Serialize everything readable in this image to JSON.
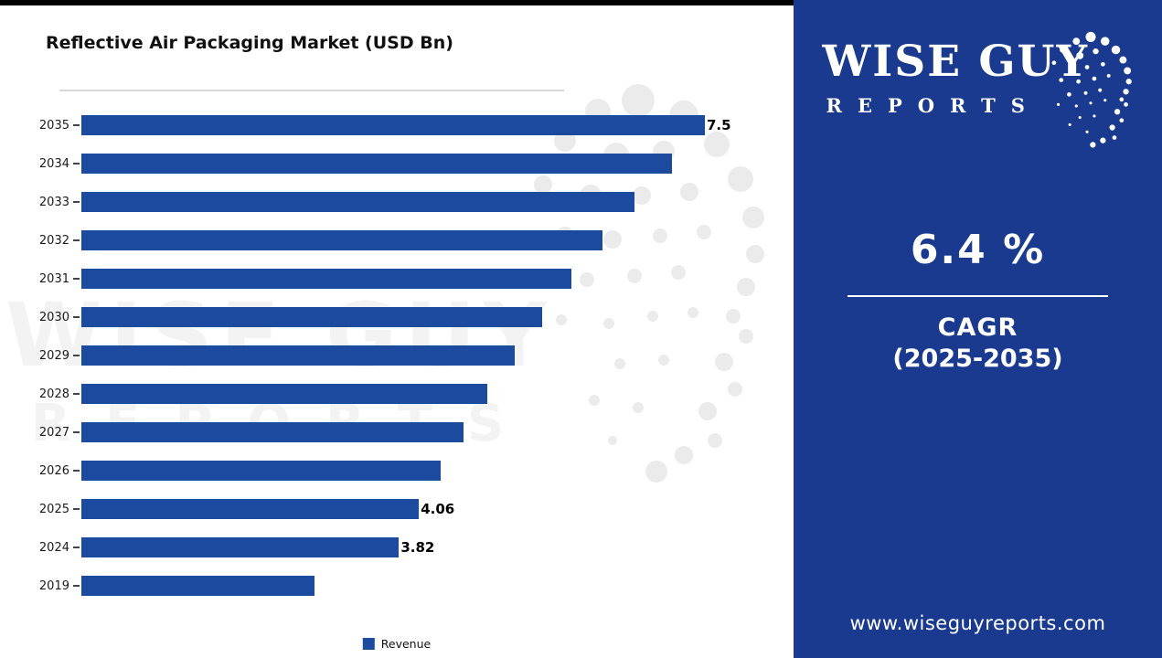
{
  "title": "Reflective Air Packaging Market (USD Bn)",
  "legend": {
    "label": "Revenue"
  },
  "chart_data": {
    "type": "bar",
    "orientation": "horizontal",
    "title": "Reflective Air Packaging Market (USD Bn)",
    "categories": [
      "2035",
      "2034",
      "2033",
      "2032",
      "2031",
      "2030",
      "2029",
      "2028",
      "2027",
      "2026",
      "2025",
      "2024",
      "2019"
    ],
    "values": [
      7.5,
      7.1,
      6.65,
      6.27,
      5.89,
      5.54,
      5.21,
      4.88,
      4.6,
      4.32,
      4.06,
      3.82,
      2.8
    ],
    "bar_labels": [
      "7.5",
      "",
      "",
      "",
      "",
      "",
      "",
      "",
      "",
      "",
      "4.06",
      "3.82",
      ""
    ],
    "xlim": [
      0,
      7.5
    ],
    "xlabel": "",
    "ylabel": "",
    "grid": false,
    "legend_entries": [
      "Revenue"
    ],
    "legend_position": "bottom-center",
    "bar_color": "#1b4a9e"
  },
  "watermark": {
    "line1": "WISE GUY",
    "line2": "REPORTS"
  },
  "side_panel": {
    "background": "#1a3a8f",
    "logo": {
      "line1": "WISE GUY",
      "line2": "REPORTS"
    },
    "cagr_value": "6.4 %",
    "cagr_label": "CAGR",
    "cagr_period": "(2025-2035)",
    "website": "www.wiseguyreports.com"
  }
}
